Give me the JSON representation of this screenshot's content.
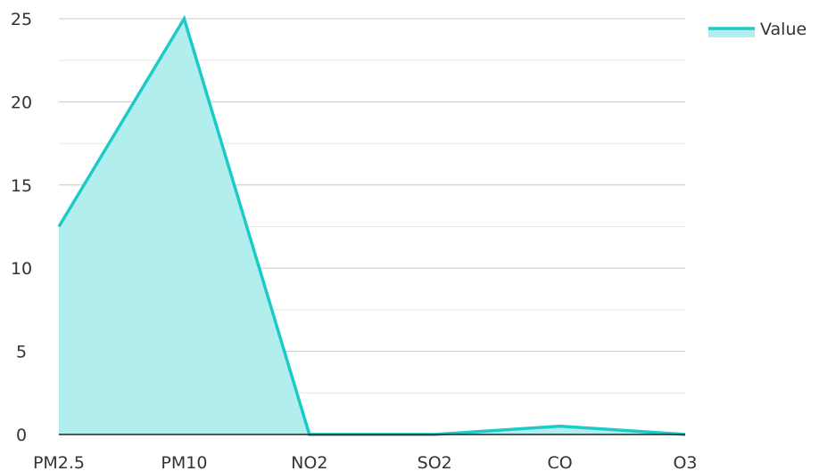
{
  "chart_data": {
    "type": "area",
    "categories": [
      "PM2.5",
      "PM10",
      "NO2",
      "SO2",
      "CO",
      "O3"
    ],
    "series": [
      {
        "name": "Value",
        "values": [
          12.5,
          25,
          0,
          0,
          0.5,
          0
        ],
        "color": "#1ccbc7",
        "fill": "#b2eeed"
      }
    ],
    "yticks": [
      0,
      5,
      10,
      15,
      20,
      25
    ],
    "ylim": [
      0,
      25
    ],
    "grid": true,
    "minor_grid": true,
    "legend": "top-right",
    "grid_color": "#c8c8c8",
    "minor_grid_color": "#e6e6e6",
    "axis_color": "#222222"
  }
}
